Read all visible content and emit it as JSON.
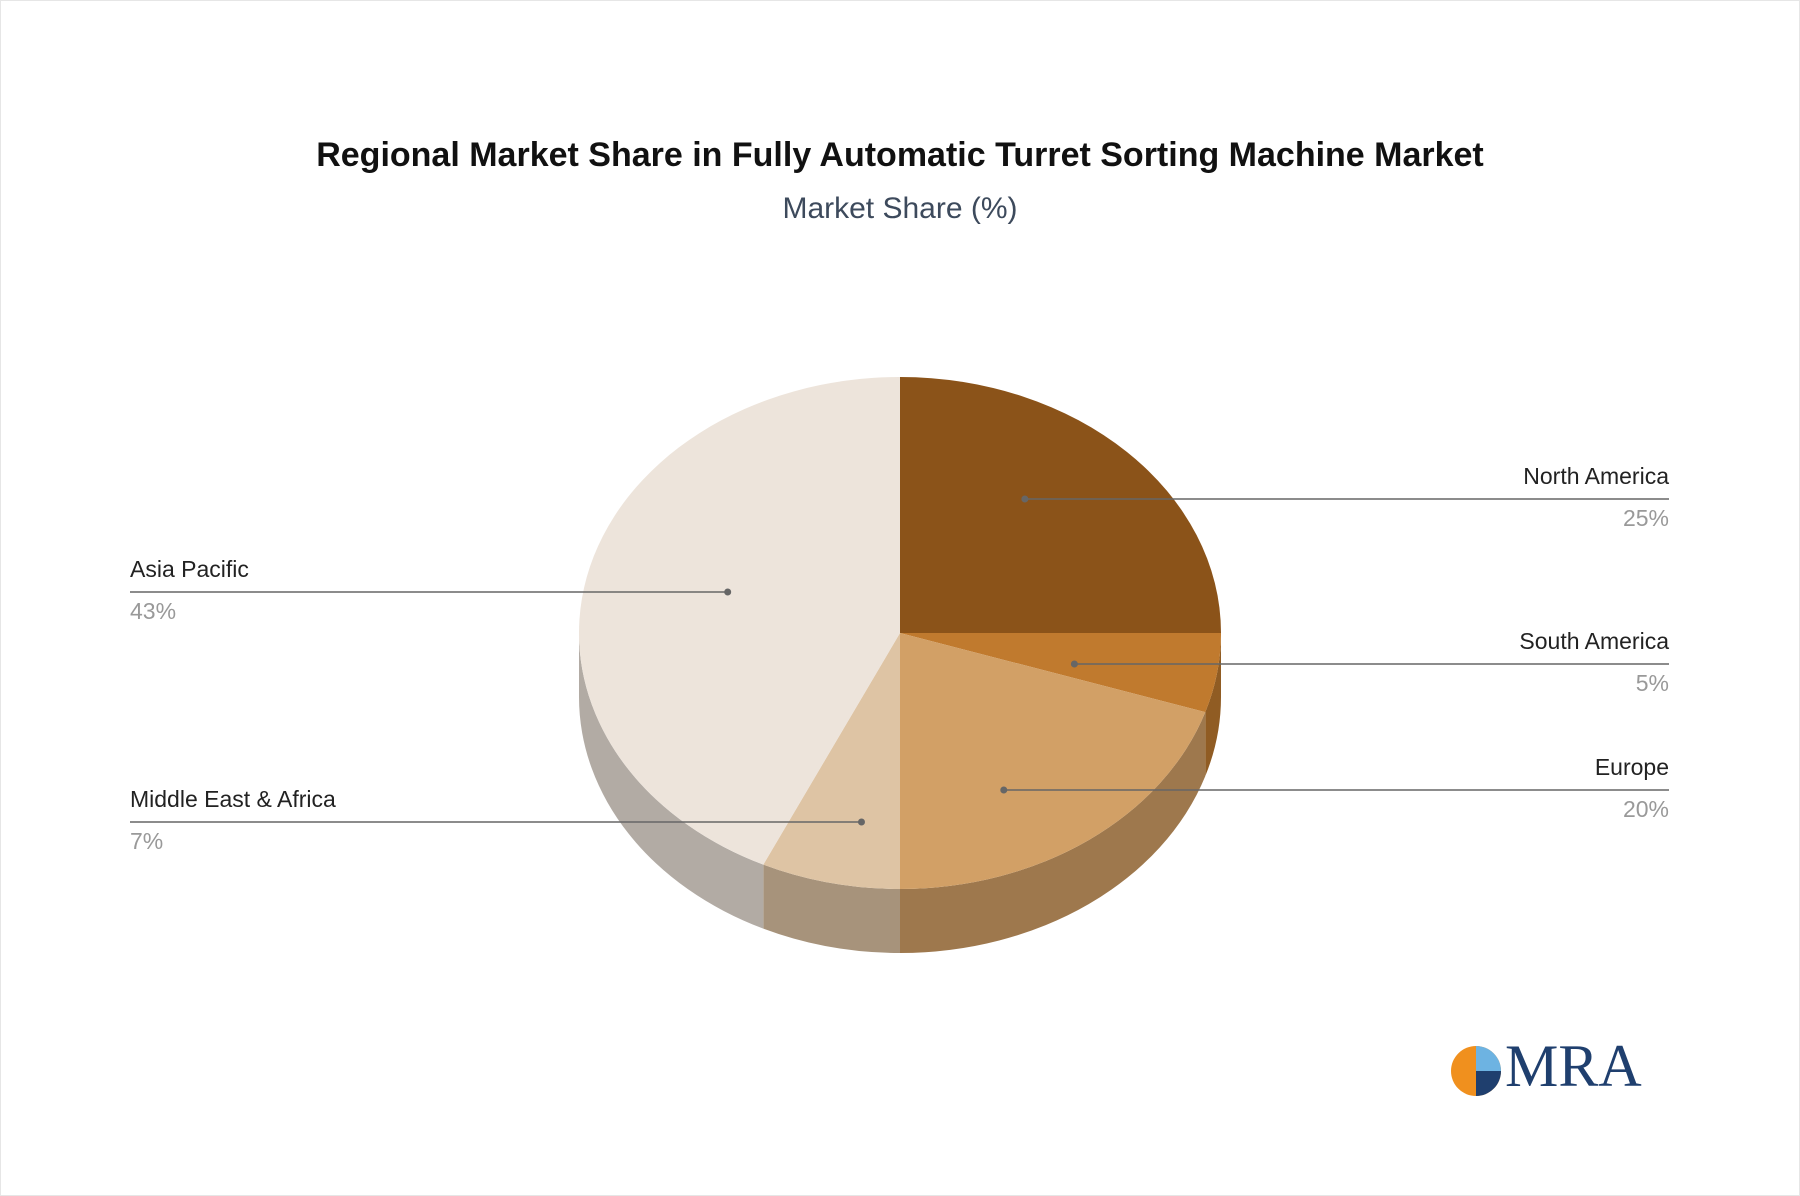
{
  "chart_data": {
    "type": "pie",
    "title": "Regional Market Share in Fully Automatic Turret Sorting Machine Market",
    "subtitle": "Market Share (%)",
    "categories": [
      "North America",
      "South America",
      "Europe",
      "Middle East & Africa",
      "Asia Pacific"
    ],
    "values": [
      25,
      5,
      20,
      7,
      43
    ],
    "value_labels": [
      "25%",
      "5%",
      "20%",
      "7%",
      "43%"
    ],
    "colors": [
      "#8B5319",
      "#C07A2E",
      "#D2A066",
      "#DEC4A4",
      "#EDE4DB"
    ]
  },
  "logo": "MRA"
}
